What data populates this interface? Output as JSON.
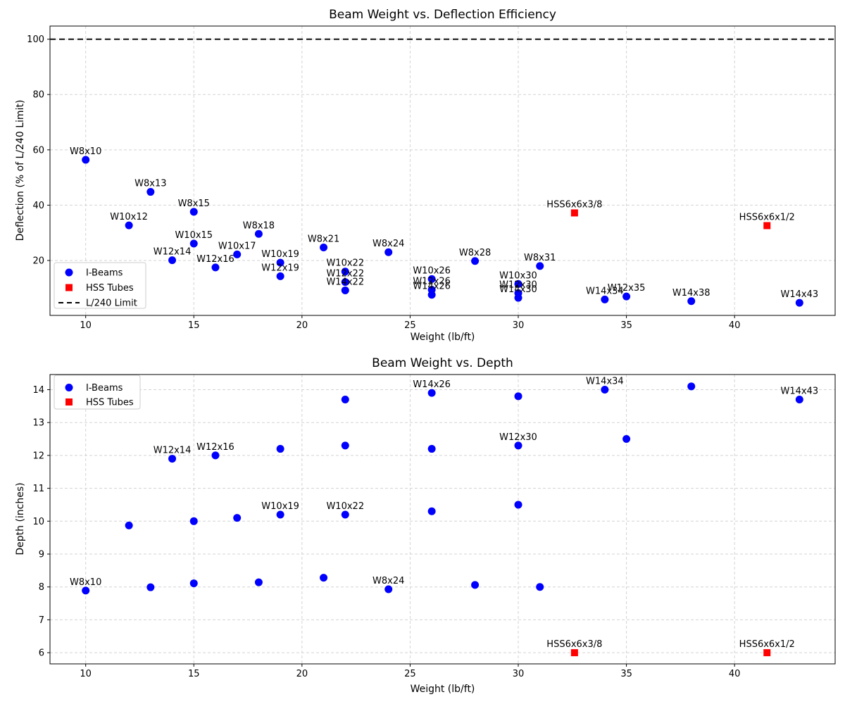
{
  "figure": {
    "background": "#ffffff"
  },
  "colors": {
    "ibeam": "#0000ff",
    "hss": "#ff0000",
    "reference": "#000000",
    "grid": "#d3d3d3",
    "spine": "#000000",
    "legend_border": "#cccccc",
    "text": "#000000"
  },
  "chart_data": [
    {
      "type": "scatter",
      "title": "Beam Weight vs. Deflection Efficiency",
      "xlabel": "Weight (lb/ft)",
      "ylabel": "Deflection (% of L/240 Limit)",
      "xlim": [
        8.35,
        44.65
      ],
      "ylim": [
        0.15,
        104.75
      ],
      "xticks": [
        10,
        15,
        20,
        25,
        30,
        35,
        40
      ],
      "yticks": [
        20,
        40,
        60,
        80,
        100
      ],
      "grid": true,
      "legend": {
        "position": "lower-left",
        "entries": [
          {
            "label": "I-Beams",
            "marker": "circle",
            "color": "#0000ff"
          },
          {
            "label": "HSS Tubes",
            "marker": "square",
            "color": "#ff0000"
          },
          {
            "label": "L/240 Limit",
            "marker": "dash",
            "color": "#000000"
          }
        ]
      },
      "reference_line": {
        "y": 100,
        "label": "L/240 Limit",
        "style": "dashed",
        "color": "#000000"
      },
      "series": [
        {
          "name": "I-Beams",
          "marker": "circle",
          "color": "#0000ff",
          "points": [
            {
              "label": "W8x10",
              "x": 10,
              "y": 56.4
            },
            {
              "label": "W8x13",
              "x": 13,
              "y": 44.8
            },
            {
              "label": "W8x15",
              "x": 15,
              "y": 37.6
            },
            {
              "label": "W8x18",
              "x": 18,
              "y": 29.6
            },
            {
              "label": "W8x21",
              "x": 21,
              "y": 24.7
            },
            {
              "label": "W8x24",
              "x": 24,
              "y": 23.0
            },
            {
              "label": "W8x28",
              "x": 28,
              "y": 19.8
            },
            {
              "label": "W8x31",
              "x": 31,
              "y": 18.0
            },
            {
              "label": "W10x12",
              "x": 12,
              "y": 32.7
            },
            {
              "label": "W10x15",
              "x": 15,
              "y": 26.1
            },
            {
              "label": "W10x17",
              "x": 17,
              "y": 22.2
            },
            {
              "label": "W10x19",
              "x": 19,
              "y": 19.2
            },
            {
              "label": "W10x22",
              "x": 22,
              "y": 16.0
            },
            {
              "label": "W10x26",
              "x": 26,
              "y": 13.3
            },
            {
              "label": "W10x30",
              "x": 30,
              "y": 11.5
            },
            {
              "label": "W12x14",
              "x": 14,
              "y": 20.1
            },
            {
              "label": "W12x16",
              "x": 16,
              "y": 17.5
            },
            {
              "label": "W12x19",
              "x": 19,
              "y": 14.3
            },
            {
              "label": "W12x22",
              "x": 22,
              "y": 12.2
            },
            {
              "label": "W12x26",
              "x": 26,
              "y": 9.4
            },
            {
              "label": "W12x30",
              "x": 30,
              "y": 8.2
            },
            {
              "label": "W12x35",
              "x": 35,
              "y": 7.0
            },
            {
              "label": "W14x22",
              "x": 22,
              "y": 9.2
            },
            {
              "label": "W14x26",
              "x": 26,
              "y": 7.6
            },
            {
              "label": "W14x30",
              "x": 30,
              "y": 6.5
            },
            {
              "label": "W14x34",
              "x": 34,
              "y": 5.9
            },
            {
              "label": "W14x38",
              "x": 38,
              "y": 5.3
            },
            {
              "label": "W14x43",
              "x": 43,
              "y": 4.7
            }
          ]
        },
        {
          "name": "HSS Tubes",
          "marker": "square",
          "color": "#ff0000",
          "points": [
            {
              "label": "HSS6x6x3/8",
              "x": 32.6,
              "y": 37.2
            },
            {
              "label": "HSS6x6x1/2",
              "x": 41.5,
              "y": 32.6
            }
          ]
        }
      ]
    },
    {
      "type": "scatter",
      "title": "Beam Weight vs. Depth",
      "xlabel": "Weight (lb/ft)",
      "ylabel": "Depth (inches)",
      "xlim": [
        8.35,
        44.65
      ],
      "ylim": [
        5.66,
        14.46
      ],
      "xticks": [
        10,
        15,
        20,
        25,
        30,
        35,
        40
      ],
      "yticks": [
        6,
        7,
        8,
        9,
        10,
        11,
        12,
        13,
        14
      ],
      "grid": true,
      "legend": {
        "position": "upper-left",
        "entries": [
          {
            "label": "I-Beams",
            "marker": "circle",
            "color": "#0000ff"
          },
          {
            "label": "HSS Tubes",
            "marker": "square",
            "color": "#ff0000"
          }
        ]
      },
      "series": [
        {
          "name": "I-Beams",
          "marker": "circle",
          "color": "#0000ff",
          "points": [
            {
              "label": "W8x10",
              "x": 10,
              "y": 7.89,
              "show_label": true
            },
            {
              "label": "W8x13",
              "x": 13,
              "y": 7.99,
              "show_label": false
            },
            {
              "label": "W8x15",
              "x": 15,
              "y": 8.11,
              "show_label": false
            },
            {
              "label": "W8x18",
              "x": 18,
              "y": 8.14,
              "show_label": false
            },
            {
              "label": "W8x21",
              "x": 21,
              "y": 8.28,
              "show_label": false
            },
            {
              "label": "W8x24",
              "x": 24,
              "y": 7.93,
              "show_label": true
            },
            {
              "label": "W8x28",
              "x": 28,
              "y": 8.06,
              "show_label": false
            },
            {
              "label": "W8x31",
              "x": 31,
              "y": 8.0,
              "show_label": false
            },
            {
              "label": "W10x12",
              "x": 12,
              "y": 9.87,
              "show_label": false
            },
            {
              "label": "W10x15",
              "x": 15,
              "y": 10.0,
              "show_label": false
            },
            {
              "label": "W10x17",
              "x": 17,
              "y": 10.1,
              "show_label": false
            },
            {
              "label": "W10x19",
              "x": 19,
              "y": 10.2,
              "show_label": true
            },
            {
              "label": "W10x22",
              "x": 22,
              "y": 10.2,
              "show_label": true
            },
            {
              "label": "W10x26",
              "x": 26,
              "y": 10.3,
              "show_label": false
            },
            {
              "label": "W10x30",
              "x": 30,
              "y": 10.5,
              "show_label": false
            },
            {
              "label": "W12x14",
              "x": 14,
              "y": 11.9,
              "show_label": true
            },
            {
              "label": "W12x16",
              "x": 16,
              "y": 12.0,
              "show_label": true
            },
            {
              "label": "W12x19",
              "x": 19,
              "y": 12.2,
              "show_label": false
            },
            {
              "label": "W12x22",
              "x": 22,
              "y": 12.3,
              "show_label": false
            },
            {
              "label": "W12x26",
              "x": 26,
              "y": 12.2,
              "show_label": false
            },
            {
              "label": "W12x30",
              "x": 30,
              "y": 12.3,
              "show_label": true
            },
            {
              "label": "W12x35",
              "x": 35,
              "y": 12.5,
              "show_label": false
            },
            {
              "label": "W14x22",
              "x": 22,
              "y": 13.7,
              "show_label": false
            },
            {
              "label": "W14x26",
              "x": 26,
              "y": 13.9,
              "show_label": true
            },
            {
              "label": "W14x30",
              "x": 30,
              "y": 13.8,
              "show_label": false
            },
            {
              "label": "W14x34",
              "x": 34,
              "y": 14.0,
              "show_label": true
            },
            {
              "label": "W14x38",
              "x": 38,
              "y": 14.1,
              "show_label": false
            },
            {
              "label": "W14x43",
              "x": 43,
              "y": 13.7,
              "show_label": true
            }
          ]
        },
        {
          "name": "HSS Tubes",
          "marker": "square",
          "color": "#ff0000",
          "points": [
            {
              "label": "HSS6x6x3/8",
              "x": 32.6,
              "y": 6.0,
              "show_label": true
            },
            {
              "label": "HSS6x6x1/2",
              "x": 41.5,
              "y": 6.0,
              "show_label": true
            }
          ]
        }
      ]
    }
  ]
}
